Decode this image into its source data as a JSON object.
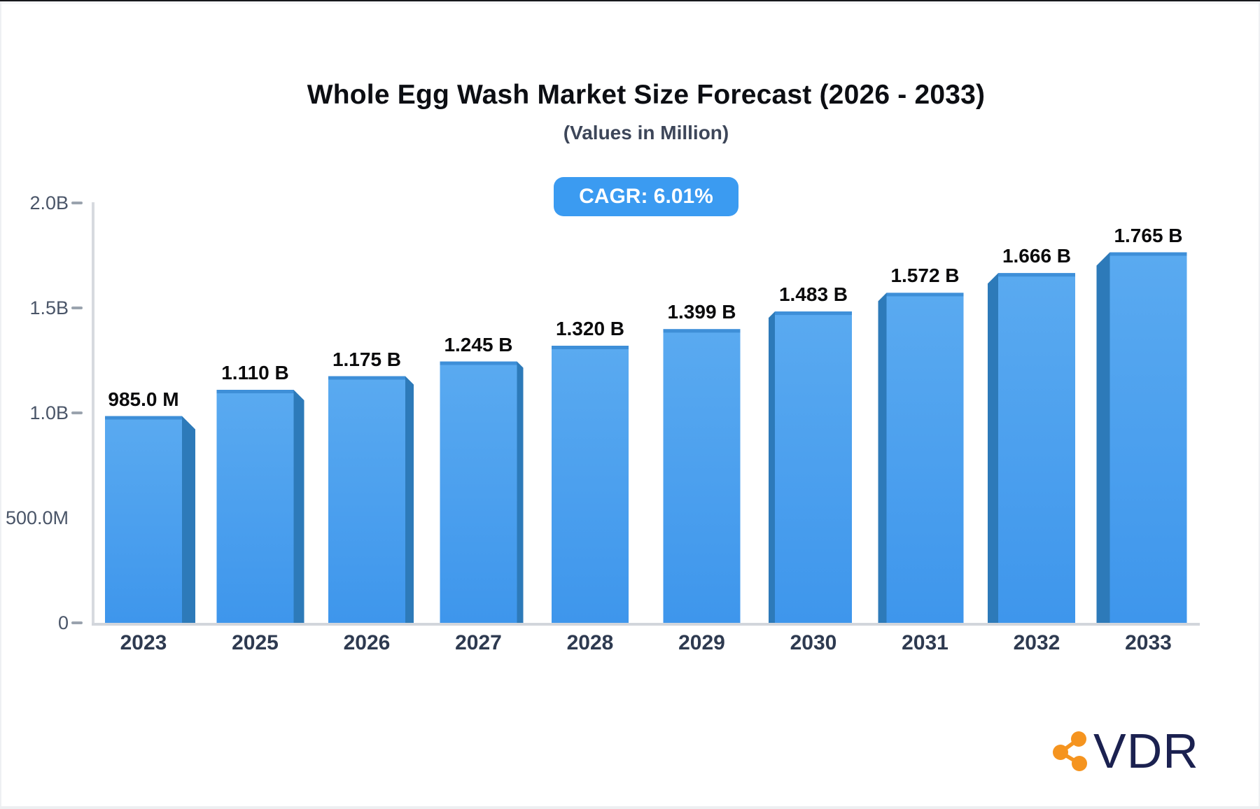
{
  "header": {
    "title": "Whole Egg Wash Market Size Forecast (2026 - 2033)",
    "subtitle": "(Values in Million)",
    "cagr_badge": "CAGR: 6.01%"
  },
  "footer_logo": {
    "text": "VDR",
    "icon": "share-network-icon",
    "orange": "#F5941F",
    "navy": "#1B2150"
  },
  "chart_data": {
    "type": "bar",
    "title": "Whole Egg Wash Market Size Forecast (2026 - 2033)",
    "subtitle": "(Values in Million)",
    "cagr": "6.01%",
    "categories": [
      "2023",
      "2025",
      "2026",
      "2027",
      "2028",
      "2029",
      "2030",
      "2031",
      "2032",
      "2033"
    ],
    "values_billion": [
      0.985,
      1.11,
      1.175,
      1.245,
      1.32,
      1.399,
      1.483,
      1.572,
      1.666,
      1.765
    ],
    "bar_labels": [
      "985.0 M",
      "1.110 B",
      "1.175 B",
      "1.245 B",
      "1.320 B",
      "1.399 B",
      "1.483 B",
      "1.572 B",
      "1.666 B",
      "1.765 B"
    ],
    "y_ticks": [
      {
        "label": "2.0B",
        "value": 2.0,
        "dash": true
      },
      {
        "label": "1.5B",
        "value": 1.5,
        "dash": true
      },
      {
        "label": "1.0B",
        "value": 1.0,
        "dash": true
      },
      {
        "label": "500.0M",
        "value": 0.5,
        "dash": false
      },
      {
        "label": "0",
        "value": 0.0,
        "dash": true
      }
    ],
    "ylim": [
      0,
      2.0
    ],
    "grid": false,
    "legend": "none",
    "style": "3d-extruded-bars, sides face outward from center",
    "colors": {
      "face_top": "#5aaaf0",
      "face_bottom": "#3e96ec",
      "face_edge": "#3e8fd8",
      "side": "#2d7ab9",
      "badge": "#3b9bf1",
      "axis_line": "#d7dadf",
      "baseline": "#d2d6dc"
    }
  }
}
